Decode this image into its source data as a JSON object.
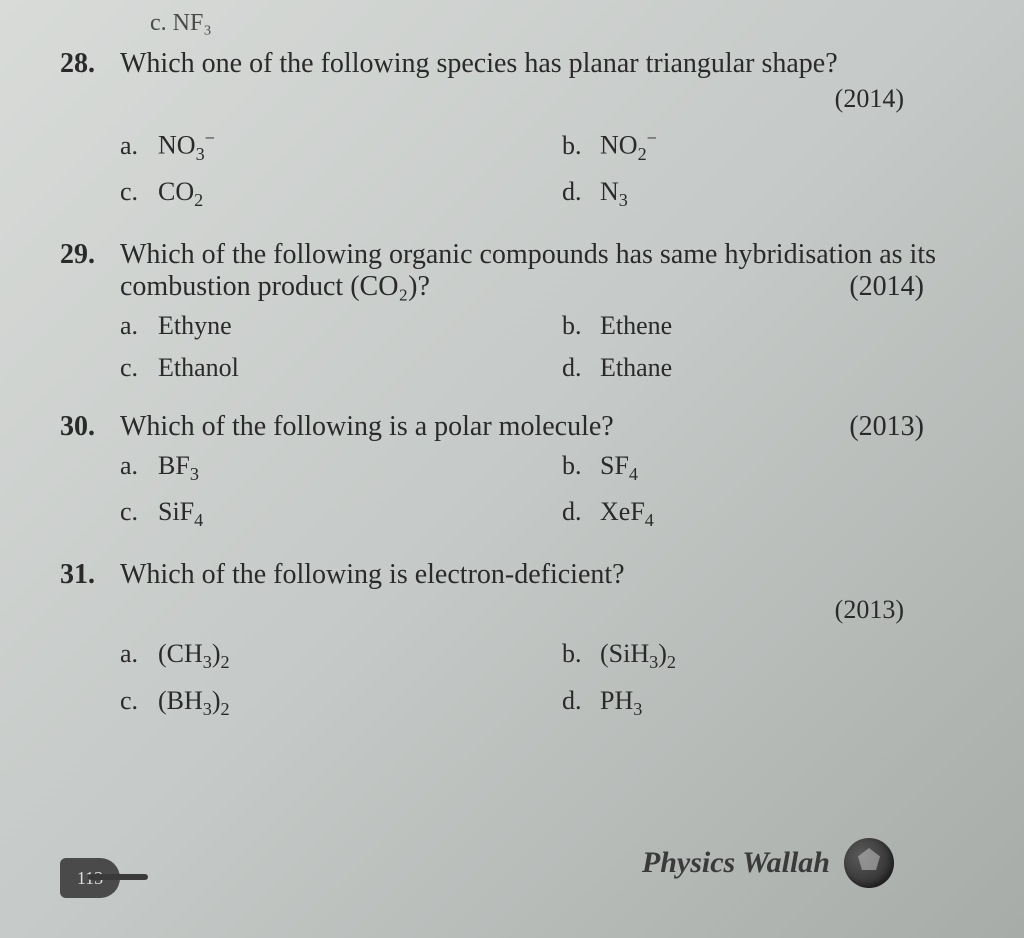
{
  "topCut": "c. NF₃",
  "questions": [
    {
      "number": "28.",
      "text": "Which one of the following species has planar triangular shape?",
      "year": "(2014)",
      "options": [
        {
          "letter": "a.",
          "html": "NO<sub>3</sub><sup>−</sup>"
        },
        {
          "letter": "b.",
          "html": "NO<sub>2</sub><sup>−</sup>"
        },
        {
          "letter": "c.",
          "html": "CO<sub>2</sub>"
        },
        {
          "letter": "d.",
          "html": "N<sub>3</sub>"
        }
      ]
    },
    {
      "number": "29.",
      "text": "Which of the following organic compounds has same hybridisation as its combustion product (CO₂)?",
      "year": "(2014)",
      "options": [
        {
          "letter": "a.",
          "html": "Ethyne"
        },
        {
          "letter": "b.",
          "html": "Ethene"
        },
        {
          "letter": "c.",
          "html": "Ethanol"
        },
        {
          "letter": "d.",
          "html": "Ethane"
        }
      ]
    },
    {
      "number": "30.",
      "text": "Which of the following is a polar molecule?",
      "year": "(2013)",
      "options": [
        {
          "letter": "a.",
          "html": "BF<sub>3</sub>"
        },
        {
          "letter": "b.",
          "html": "SF<sub>4</sub>"
        },
        {
          "letter": "c.",
          "html": "SiF<sub>4</sub>"
        },
        {
          "letter": "d.",
          "html": "XeF<sub>4</sub>"
        }
      ]
    },
    {
      "number": "31.",
      "text": "Which of the following is electron-deficient?",
      "year": "(2013)",
      "options": [
        {
          "letter": "a.",
          "html": "(CH<sub>3</sub>)<sub>2</sub>"
        },
        {
          "letter": "b.",
          "html": "(SiH<sub>3</sub>)<sub>2</sub>"
        },
        {
          "letter": "c.",
          "html": "(BH<sub>3</sub>)<sub>2</sub>"
        },
        {
          "letter": "d.",
          "html": "PH<sub>3</sub>"
        }
      ]
    }
  ],
  "footer": "Physics Wallah",
  "pageMarker": "113"
}
